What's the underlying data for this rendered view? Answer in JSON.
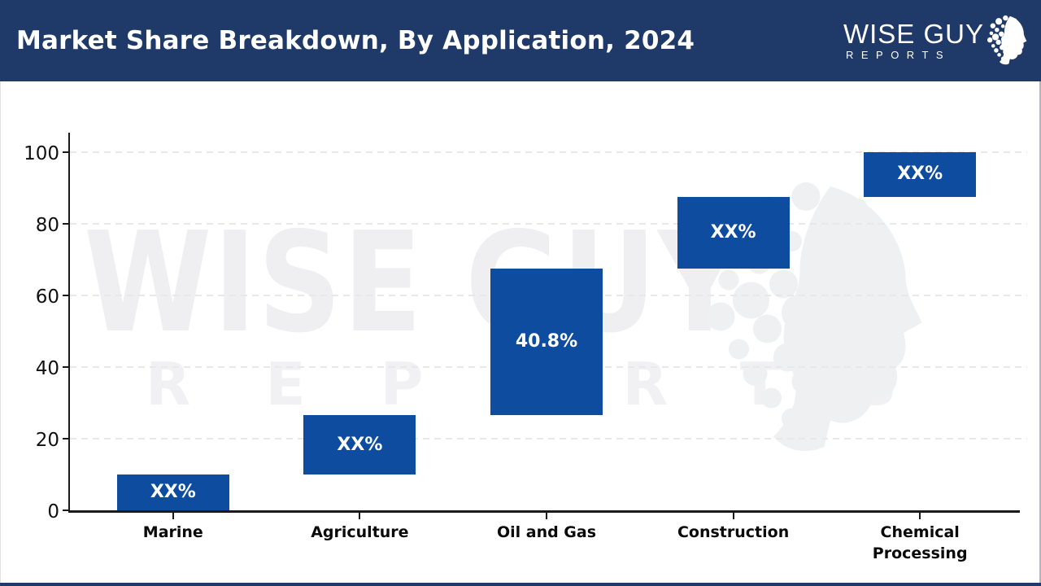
{
  "header": {
    "title": "Market Share Breakdown, By Application, 2024",
    "logo": {
      "line1": "WISE GUY",
      "line2": "REPORTS",
      "icon": "head-profile-dots-icon"
    }
  },
  "watermark": {
    "line1": "WISE GUY",
    "line2": "REPORTS",
    "icon": "head-profile-dots-icon"
  },
  "chart_data": {
    "type": "bar",
    "subtype": "floating-waterfall",
    "title": "Market Share Breakdown, By Application, 2024",
    "categories": [
      "Marine",
      "Agriculture",
      "Oil and Gas",
      "Construction",
      "Chemical Processing"
    ],
    "series": [
      {
        "name": "Market share segment (%), cumulative stacking",
        "ranges": [
          [
            0,
            10
          ],
          [
            10,
            26.6
          ],
          [
            26.6,
            67.4
          ],
          [
            67.4,
            87.6
          ],
          [
            87.6,
            100
          ]
        ]
      }
    ],
    "bar_labels": [
      "XX%",
      "XX%",
      "40.8%",
      "XX%",
      "XX%"
    ],
    "yticks": [
      0,
      20,
      40,
      60,
      80,
      100
    ],
    "ylim": [
      0,
      105
    ],
    "xlabel": "",
    "ylabel": "",
    "grid": "horizontal-dashed",
    "legend": "none"
  },
  "colors": {
    "header_bg": "#1f3a68",
    "footer_bg": "#1f3a68",
    "bar": "#0d4c9e",
    "bar_label": "#ffffff",
    "grid": "#e8e8e8",
    "axis": "#1a1a1a",
    "watermark": "#efeff1",
    "title_text": "#ffffff"
  }
}
